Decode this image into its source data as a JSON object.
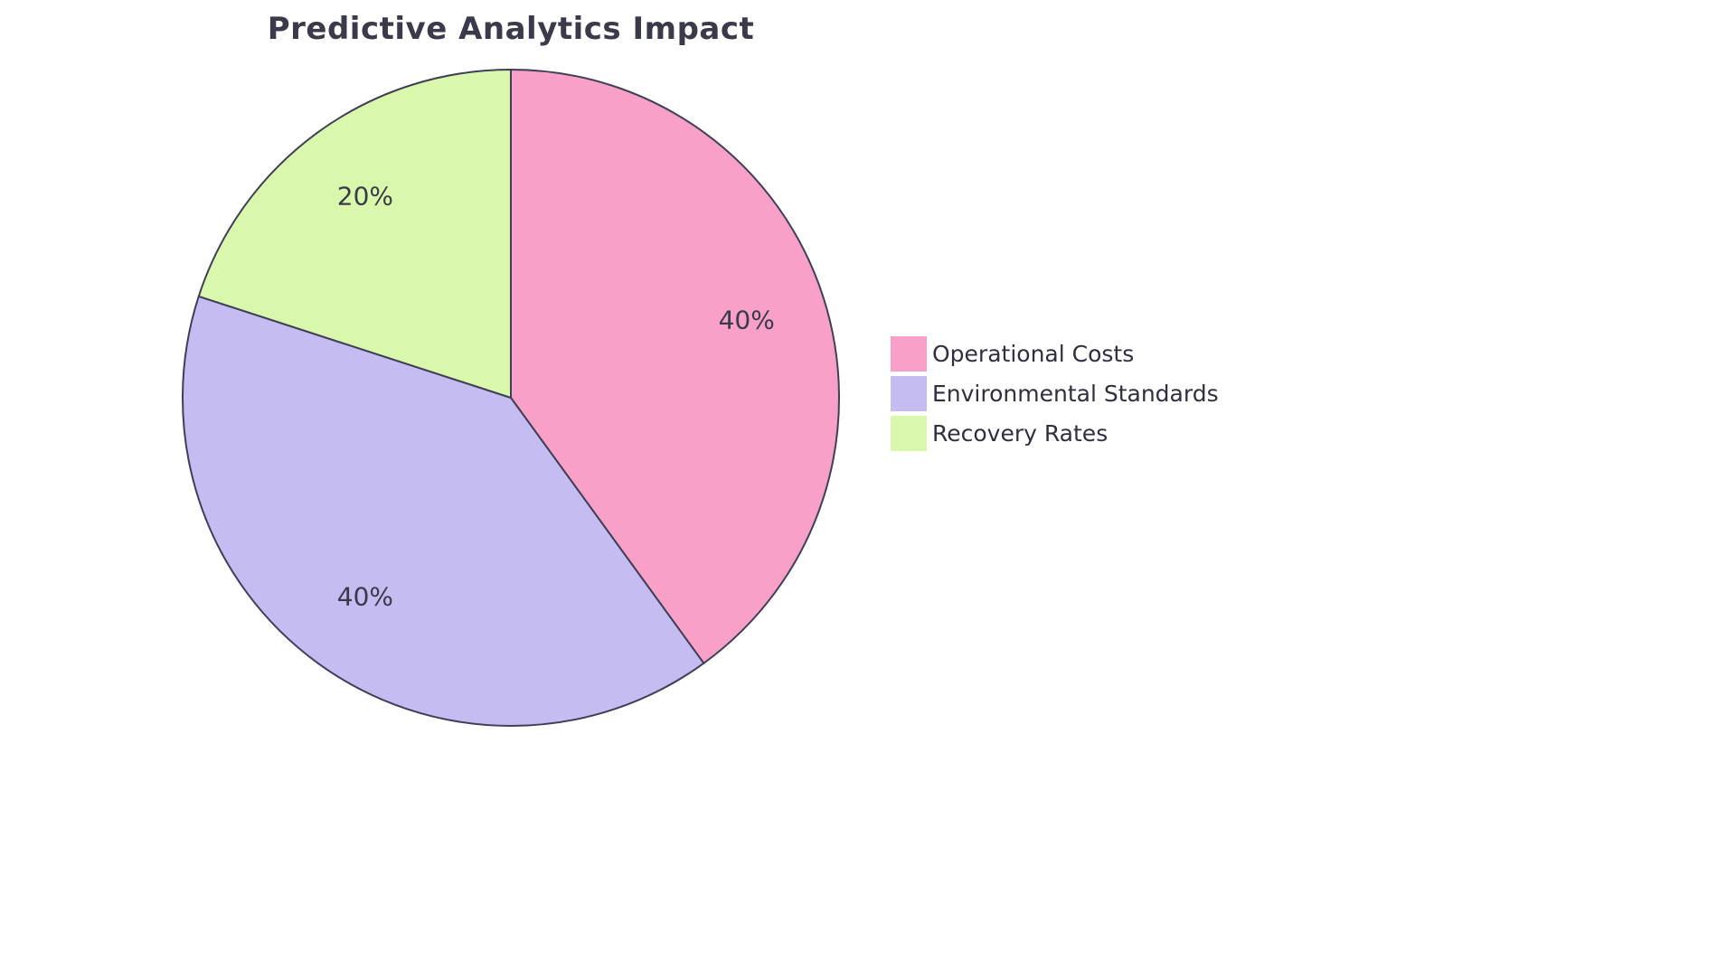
{
  "chart_data": {
    "type": "pie",
    "title": "Predictive Analytics Impact",
    "labels": [
      "Operational Costs",
      "Environmental Standards",
      "Recovery Rates"
    ],
    "values": [
      40,
      40,
      20
    ],
    "slice_labels": [
      "40%",
      "40%",
      "20%"
    ],
    "colors": [
      "#F9A0C9",
      "#C5BCF1",
      "#D9F8AC"
    ],
    "stroke_color": "#3F3F58",
    "text_color": "#3A3A4A",
    "legend_position": "right",
    "start_angle_deg": 0,
    "direction": "clockwise",
    "background_color": "#FFFFFF"
  }
}
